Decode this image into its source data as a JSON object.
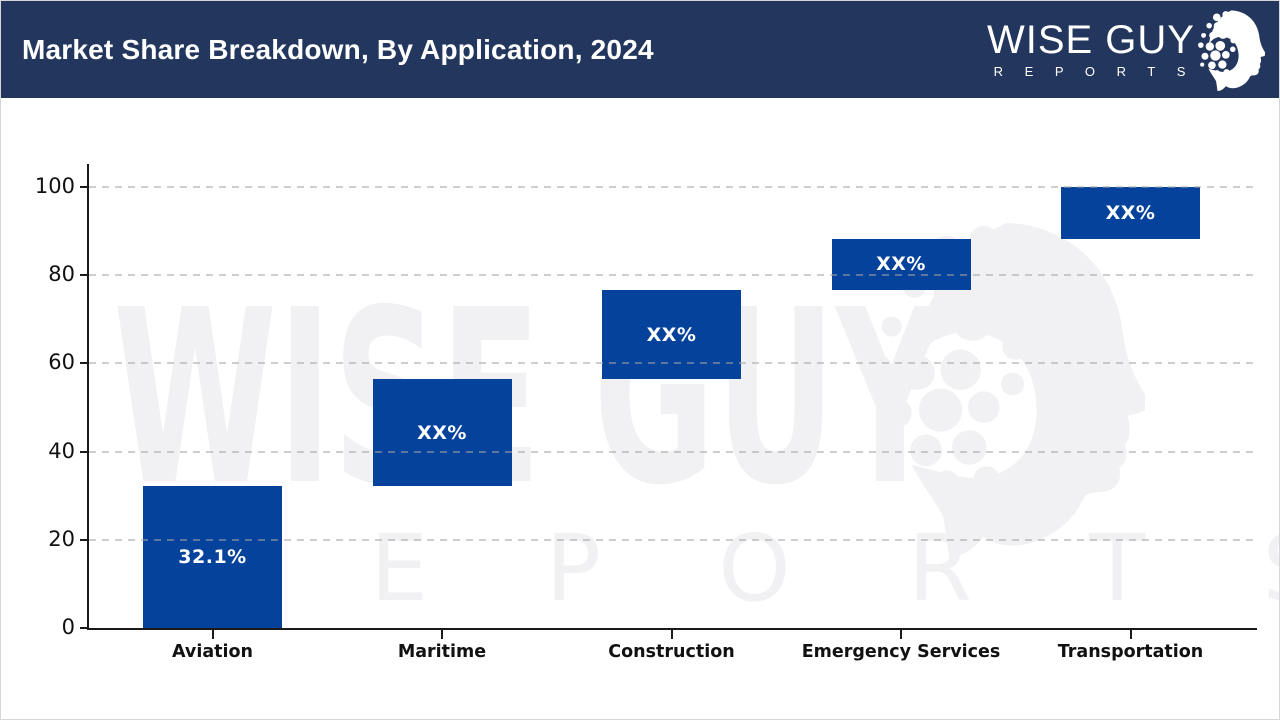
{
  "header": {
    "title": "Market Share Breakdown, By Application, 2024",
    "logo_line1": "WISE GUY",
    "logo_line2": "R E P O R T S"
  },
  "watermark": {
    "line1": "WISE GUY",
    "line2": "R E P O R T S"
  },
  "colors": {
    "header_bg": "#23375E",
    "bar": "#05429B",
    "grid_line": "#d9d9d9",
    "watermark": "#f1f1f4",
    "axis": "#1a1a1a"
  },
  "chart_data": {
    "type": "bar",
    "subtype": "waterfall-floating-bars",
    "title": "Market Share Breakdown, By Application, 2024",
    "categories": [
      "Aviation",
      "Maritime",
      "Construction",
      "Emergency Services",
      "Transportation"
    ],
    "bars": [
      {
        "category": "Aviation",
        "start": 0,
        "end": 32.1,
        "label": "32.1%"
      },
      {
        "category": "Maritime",
        "start": 32.1,
        "end": 56.4,
        "label": "XX%"
      },
      {
        "category": "Construction",
        "start": 56.4,
        "end": 76.6,
        "label": "XX%"
      },
      {
        "category": "Emergency Services",
        "start": 76.6,
        "end": 88.3,
        "label": "XX%"
      },
      {
        "category": "Transportation",
        "start": 88.3,
        "end": 100,
        "label": "XX%"
      }
    ],
    "xlabel": "",
    "ylabel": "",
    "yticks": [
      0,
      20,
      40,
      60,
      80,
      100
    ],
    "ylim": [
      0,
      105
    ],
    "grid": "horizontal-dashed",
    "legend": "none"
  }
}
